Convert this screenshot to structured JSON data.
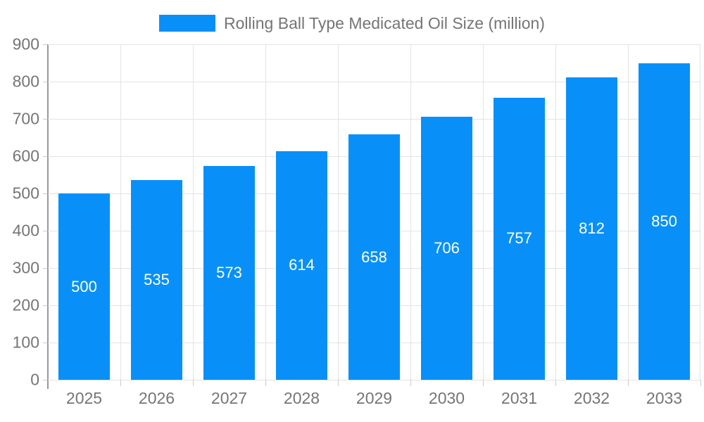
{
  "chart_data": {
    "type": "bar",
    "title": "Rolling Ball Type Medicated Oil Size (million)",
    "categories": [
      "2025",
      "2026",
      "2027",
      "2028",
      "2029",
      "2030",
      "2031",
      "2032",
      "2033"
    ],
    "values": [
      500,
      535,
      573,
      614,
      658,
      706,
      757,
      812,
      850
    ],
    "series": [
      {
        "name": "Rolling Ball Type Medicated Oil Size (million)",
        "values": [
          500,
          535,
          573,
          614,
          658,
          706,
          757,
          812,
          850
        ]
      }
    ],
    "xlabel": "",
    "ylabel": "",
    "ylim": [
      0,
      900
    ],
    "yticks": [
      0,
      100,
      200,
      300,
      400,
      500,
      600,
      700,
      800,
      900
    ],
    "grid": "on",
    "legend_position": "top-center",
    "bar_label_position": "inside-middle",
    "colors": {
      "bar": "#0890f8",
      "bar_label": "#ffffff",
      "axis_label": "#757575",
      "legend_text": "#757575",
      "grid_line": "#e3e3e3",
      "axis_line": "#999999",
      "tick_mark": "#cccccc",
      "background": "#ffffff"
    }
  }
}
